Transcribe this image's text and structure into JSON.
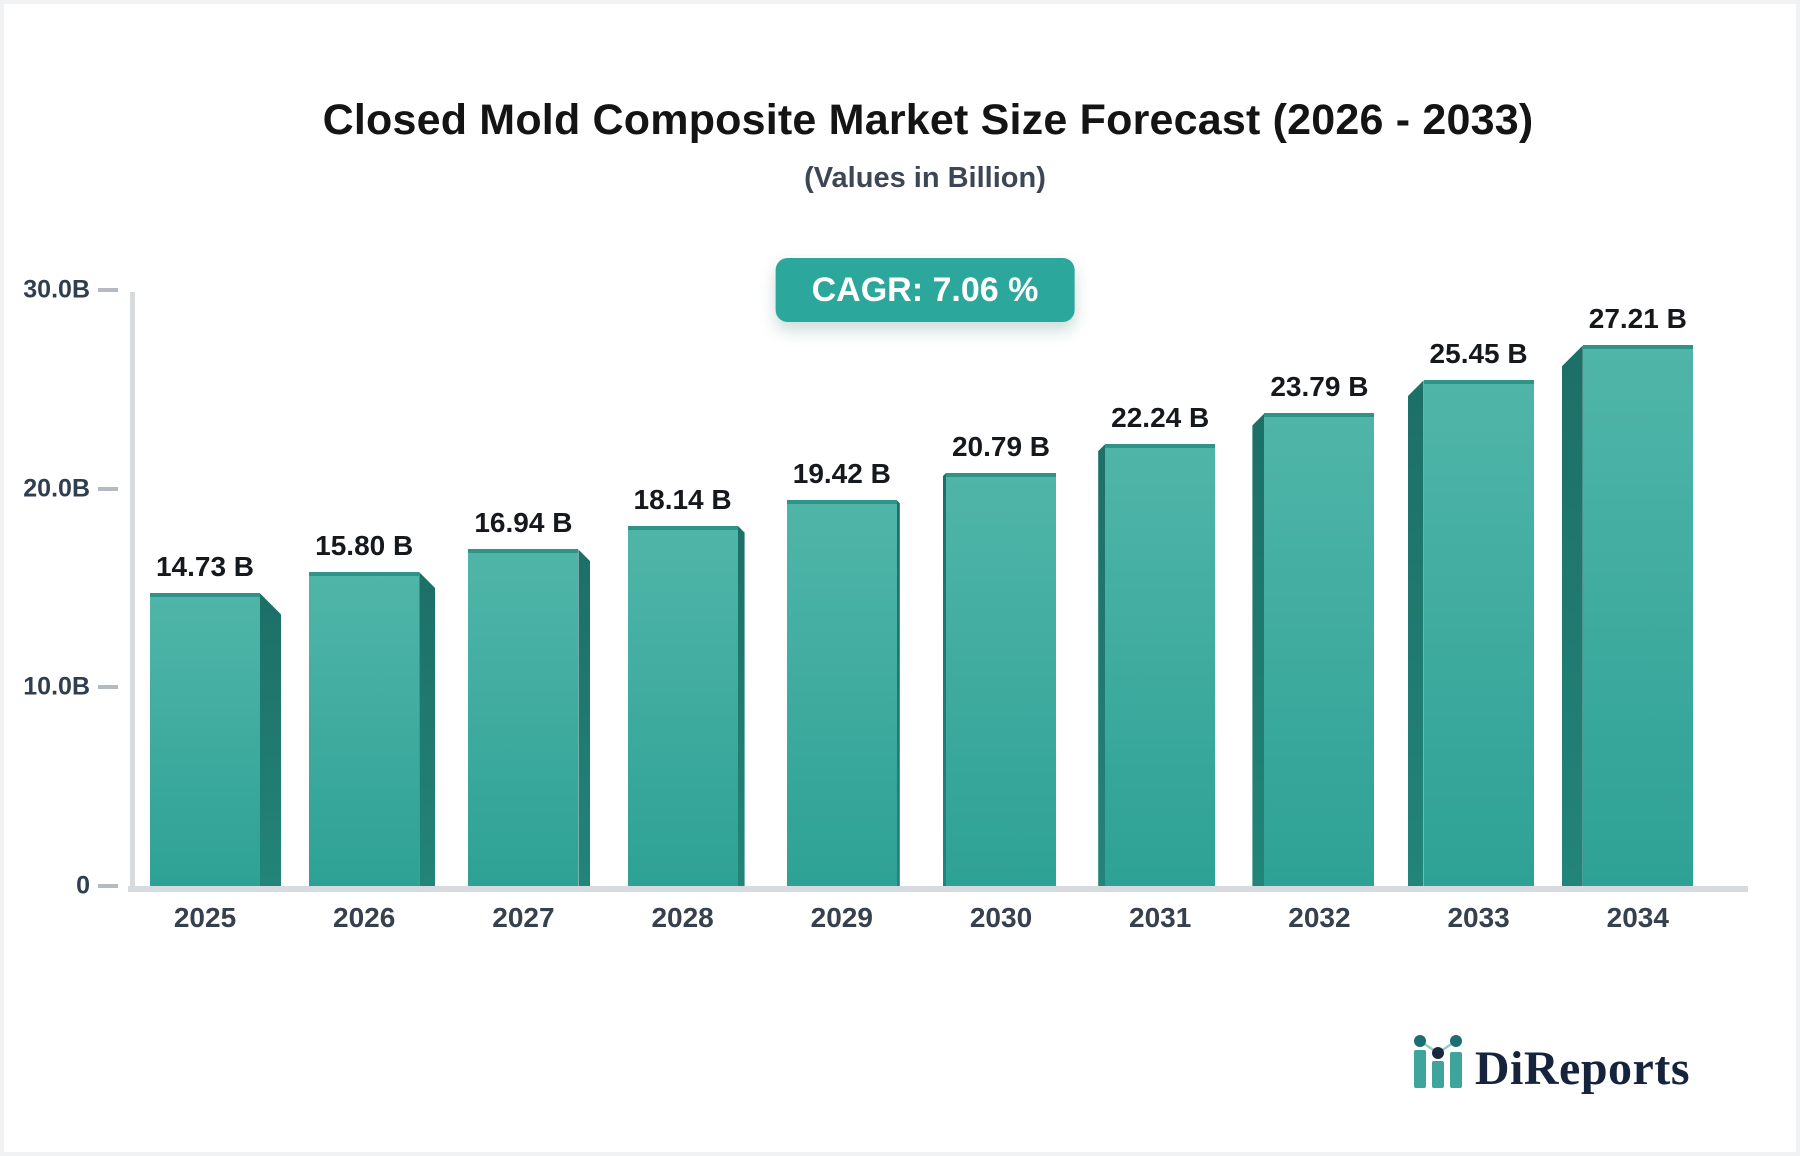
{
  "chart_data": {
    "type": "bar",
    "title": "Closed Mold Composite Market Size Forecast (2026 - 2033)",
    "subtitle": "(Values in Billion)",
    "cagr_label": "CAGR: 7.06 %",
    "categories": [
      "2025",
      "2026",
      "2027",
      "2028",
      "2029",
      "2030",
      "2031",
      "2032",
      "2033",
      "2034"
    ],
    "values": [
      14.73,
      15.8,
      16.94,
      18.14,
      19.42,
      20.79,
      22.24,
      23.79,
      25.45,
      27.21
    ],
    "value_labels": [
      "14.73 B",
      "15.80 B",
      "16.94 B",
      "18.14 B",
      "19.42 B",
      "20.79 B",
      "22.24 B",
      "23.79 B",
      "25.45 B",
      "27.21 B"
    ],
    "xlabel": "",
    "ylabel": "",
    "ylim": [
      0,
      30
    ],
    "yticks": [
      {
        "label": "30.0B",
        "value": 30
      },
      {
        "label": "20.0B",
        "value": 20
      },
      {
        "label": "10.0B",
        "value": 10
      },
      {
        "label": "0",
        "value": 0
      }
    ],
    "grid": false,
    "legend": "none",
    "colors": {
      "bar_front_top": "#50b5a9",
      "bar_front_bottom": "#2ea195",
      "bar_top_edge": "#2e9488",
      "bar_side_dark": "#1d6f66",
      "bar_side_light": "#23847a",
      "badge_bg": "#2ca79b",
      "badge_text": "#ffffff",
      "axis_line": "#d7dadf",
      "tick_text": "#2f3e50",
      "year_text": "#37404d",
      "value_text": "#15181c",
      "title_text": "#141414",
      "subtitle_text": "#3d4654",
      "logo_text": "#16233c",
      "logo_teal": "#3fa49c",
      "logo_dot_dark": "#1b2940",
      "logo_dot_teal": "#1c6e74"
    }
  },
  "footer": {
    "brand": "DiReports"
  }
}
